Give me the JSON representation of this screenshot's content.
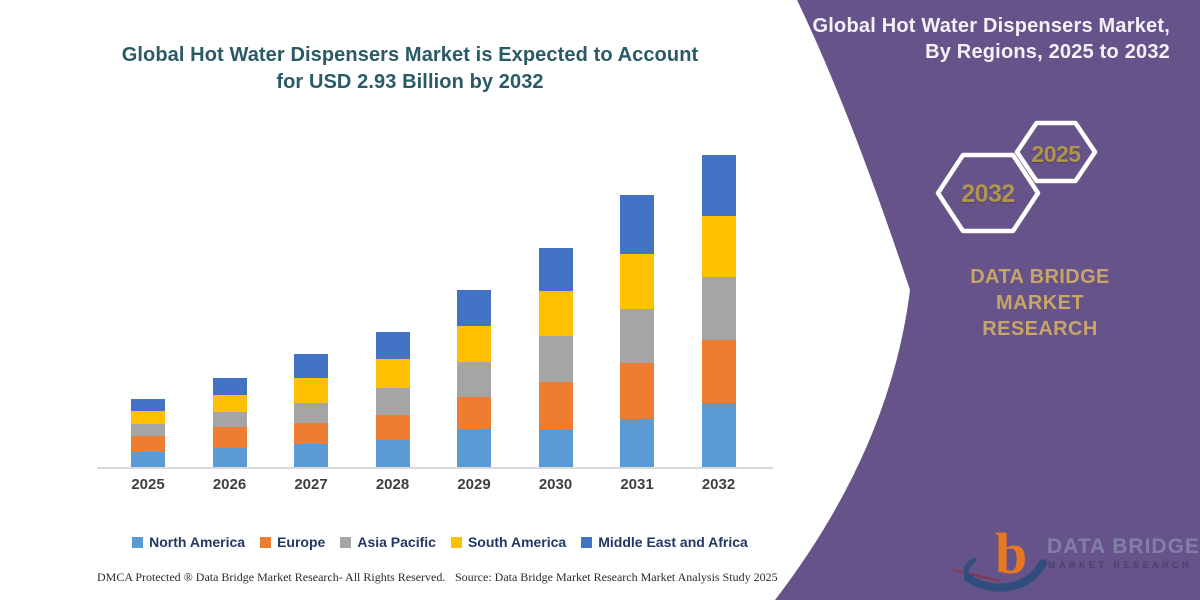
{
  "left_title": {
    "line1": "Global Hot Water Dispensers Market is Expected to Account",
    "line2": "for USD 2.93 Billion by 2032"
  },
  "chart_data": {
    "type": "bar",
    "subtype": "stacked-vertical",
    "title": "Global Hot Water Dispensers Market is Expected to Account for USD 2.93 Billion by 2032",
    "unit": "USD Billion",
    "categories": [
      "2025",
      "2026",
      "2027",
      "2028",
      "2029",
      "2030",
      "2031",
      "2032"
    ],
    "series": [
      {
        "name": "North America",
        "color": "#5B9BD5",
        "values": [
          0.14,
          0.18,
          0.22,
          0.25,
          0.36,
          0.35,
          0.45,
          0.6
        ]
      },
      {
        "name": "Europe",
        "color": "#ED7D31",
        "values": [
          0.15,
          0.2,
          0.19,
          0.24,
          0.3,
          0.45,
          0.53,
          0.59
        ]
      },
      {
        "name": "Asia Pacific",
        "color": "#A5A5A5",
        "values": [
          0.11,
          0.14,
          0.19,
          0.25,
          0.33,
          0.43,
          0.5,
          0.59
        ]
      },
      {
        "name": "South America",
        "color": "#FFC000",
        "values": [
          0.13,
          0.16,
          0.24,
          0.27,
          0.33,
          0.42,
          0.52,
          0.58
        ]
      },
      {
        "name": "Middle East and Africa",
        "color": "#4472C4",
        "values": [
          0.11,
          0.16,
          0.22,
          0.26,
          0.34,
          0.41,
          0.55,
          0.57
        ]
      }
    ],
    "totals": [
      0.64,
      0.84,
      1.06,
      1.27,
      1.66,
      2.06,
      2.55,
      2.93
    ],
    "xlabel": "",
    "ylabel": "",
    "ylim": [
      0,
      3.0
    ],
    "grid": false,
    "y_axis_visible": false,
    "legend_position": "bottom"
  },
  "footer": {
    "left": "DMCA Protected ® Data Bridge Market Research-  All Rights Reserved.",
    "right": "Source: Data Bridge Market Research  Market Analysis Study 2025"
  },
  "right_panel": {
    "title_line1": "Global Hot Water Dispensers Market,",
    "title_line2": "By Regions, 2025 to 2032",
    "hexagon_back_label": "2032",
    "hexagon_front_label": "2025",
    "brand_line1": "DATA BRIDGE MARKET",
    "brand_line2": "RESEARCH",
    "logo_watermark_line1": "DATA BRIDGE",
    "logo_watermark_line2": "MARKET RESEARCH",
    "colors": {
      "panel": "#655389",
      "hexagon_stroke": "#ffffff",
      "accent_text": "#c7a467",
      "hexagon_number": "#b0954e",
      "logo_orange": "#e87722",
      "logo_blue": "#2d4d7c"
    }
  }
}
